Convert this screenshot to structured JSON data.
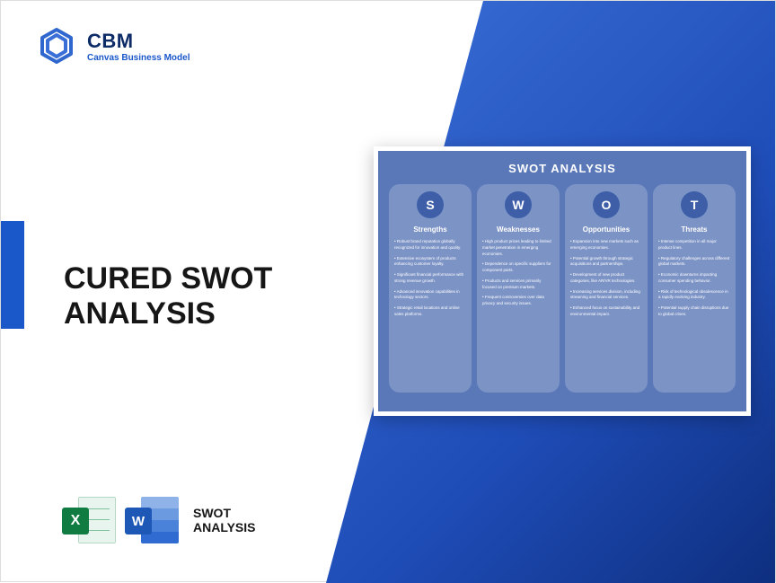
{
  "brand": {
    "name": "CBM",
    "tagline": "Canvas Business Model",
    "logo_color": "#1a57c9"
  },
  "colors": {
    "blue_gradient_from": "#3b6fd8",
    "blue_gradient_mid": "#1f4db8",
    "blue_gradient_to": "#0e2f80",
    "accent": "#1a57c9",
    "text_dark": "#161616",
    "card_bg": "#5a78b8",
    "col_bg": "#7c93c6",
    "circle_bg": "#3e5fa8",
    "excel": "#107c41",
    "word": "#1e58b6"
  },
  "title": "CURED SWOT ANALYSIS",
  "swot": {
    "title": "SWOT ANALYSIS",
    "columns": [
      {
        "letter": "S",
        "heading": "Strengths",
        "items": [
          "• Robust brand reputation globally recognized for innovation and quality.",
          "• Extensive ecosystem of products enhancing customer loyalty.",
          "• Significant financial performance with strong revenue growth.",
          "• Advanced innovation capabilities in technology sectors.",
          "• Strategic retail locations and online sales platforms."
        ]
      },
      {
        "letter": "W",
        "heading": "Weaknesses",
        "items": [
          "• High product prices leading to limited market penetration in emerging economies.",
          "• Dependence on specific suppliers for component parts.",
          "• Products and services primarily focused on premium markets.",
          "• Frequent controversies over data privacy and security issues."
        ]
      },
      {
        "letter": "O",
        "heading": "Opportunities",
        "items": [
          "• Expansion into new markets such as emerging economies.",
          "• Potential growth through strategic acquisitions and partnerships.",
          "• Development of new product categories, like AR/VR technologies.",
          "• Increasing services division, including streaming and financial services.",
          "• Enhanced focus on sustainability and environmental impact."
        ]
      },
      {
        "letter": "T",
        "heading": "Threats",
        "items": [
          "• Intense competition in all major product lines.",
          "• Regulatory challenges across different global markets.",
          "• Economic downturns impacting consumer spending behavior.",
          "• Risk of technological obsolescence in a rapidly evolving industry.",
          "• Potential supply chain disruptions due to global crises."
        ]
      }
    ]
  },
  "bottom": {
    "excel_letter": "X",
    "word_letter": "W",
    "label_line1": "SWOT",
    "label_line2": "ANALYSIS"
  }
}
